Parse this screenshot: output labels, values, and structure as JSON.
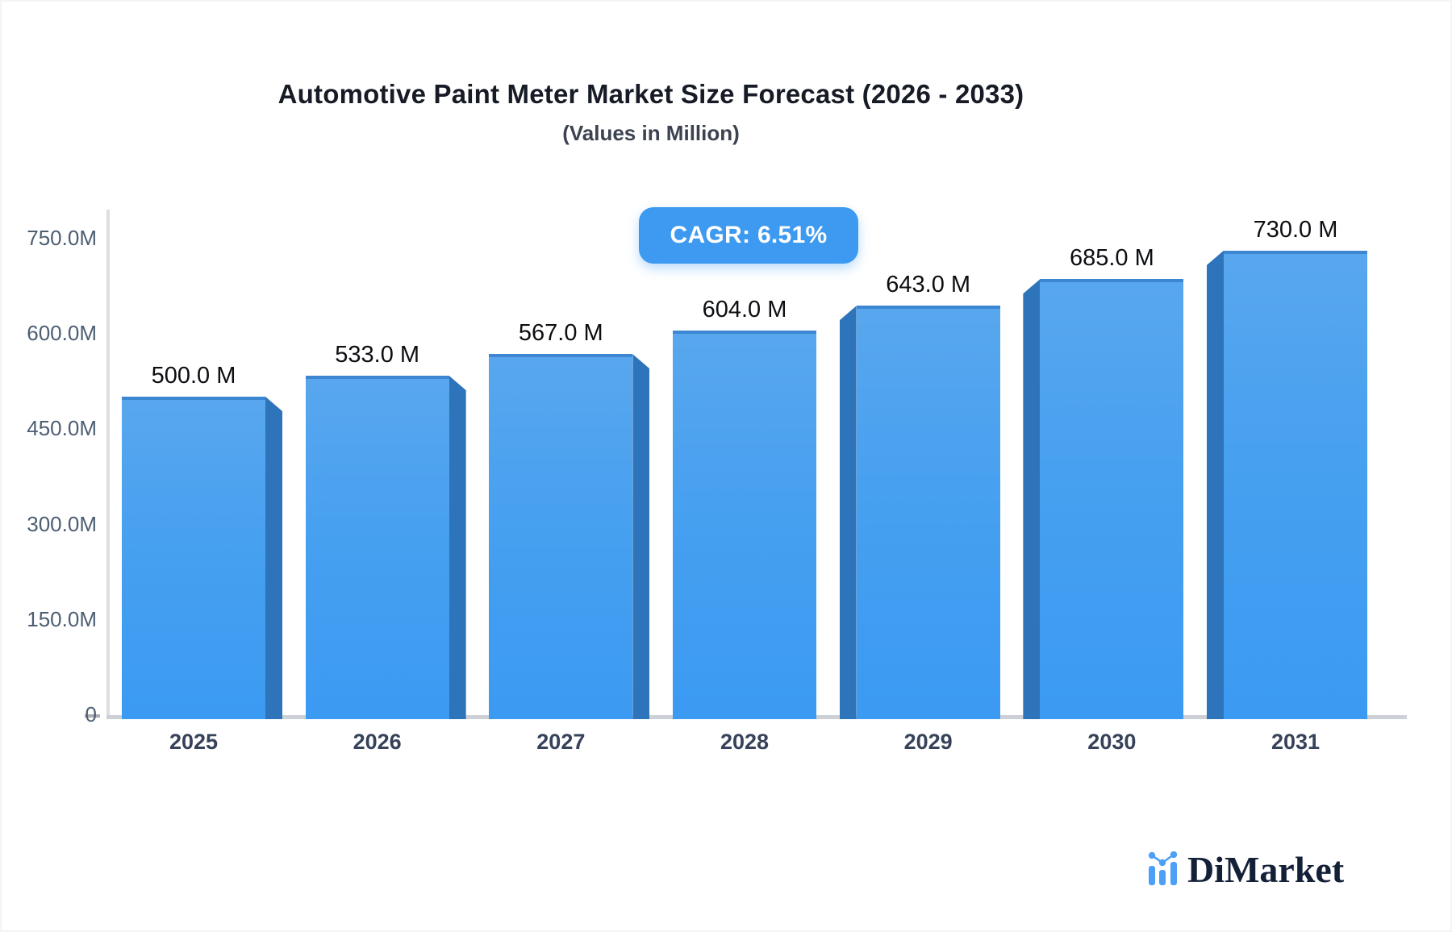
{
  "header": {
    "title": "Automotive Paint Meter Market Size Forecast (2026 - 2033)",
    "subtitle": "(Values in Million)"
  },
  "badge": {
    "label": "CAGR: 6.51%",
    "bg_color": "#3d9af0",
    "text_color": "#ffffff"
  },
  "chart_data": {
    "type": "bar",
    "title": "Automotive Paint Meter Market Size Forecast (2026 - 2033)",
    "subtitle": "(Values in Million)",
    "unit": "Million",
    "categories": [
      "2025",
      "2026",
      "2027",
      "2028",
      "2029",
      "2030",
      "2031"
    ],
    "values": [
      500,
      533,
      567,
      604,
      643,
      685,
      730
    ],
    "value_labels": [
      "500.0 M",
      "533.0 M",
      "567.0 M",
      "604.0 M",
      "643.0 M",
      "685.0 M",
      "730.0 M"
    ],
    "xlabel": "",
    "ylabel": "",
    "ylim": [
      0,
      750
    ],
    "y_ticks": [
      0,
      150,
      300,
      450,
      600,
      750
    ],
    "y_tick_labels": [
      "0",
      "150.0M",
      "300.0M",
      "450.0M",
      "600.0M",
      "750.0M"
    ],
    "grid": false,
    "legend": false,
    "bar_color_top": "#58a7ee",
    "bar_color_bottom": "#3b9af2",
    "bar_top_edge_color": "#3c86d2",
    "bar_side_color": "#2e74bb"
  },
  "watermark": {
    "brand": "DiMarket",
    "icon": "bar-line-chart-icon",
    "text_color": "#142038",
    "icon_color": "#4da0f5"
  }
}
